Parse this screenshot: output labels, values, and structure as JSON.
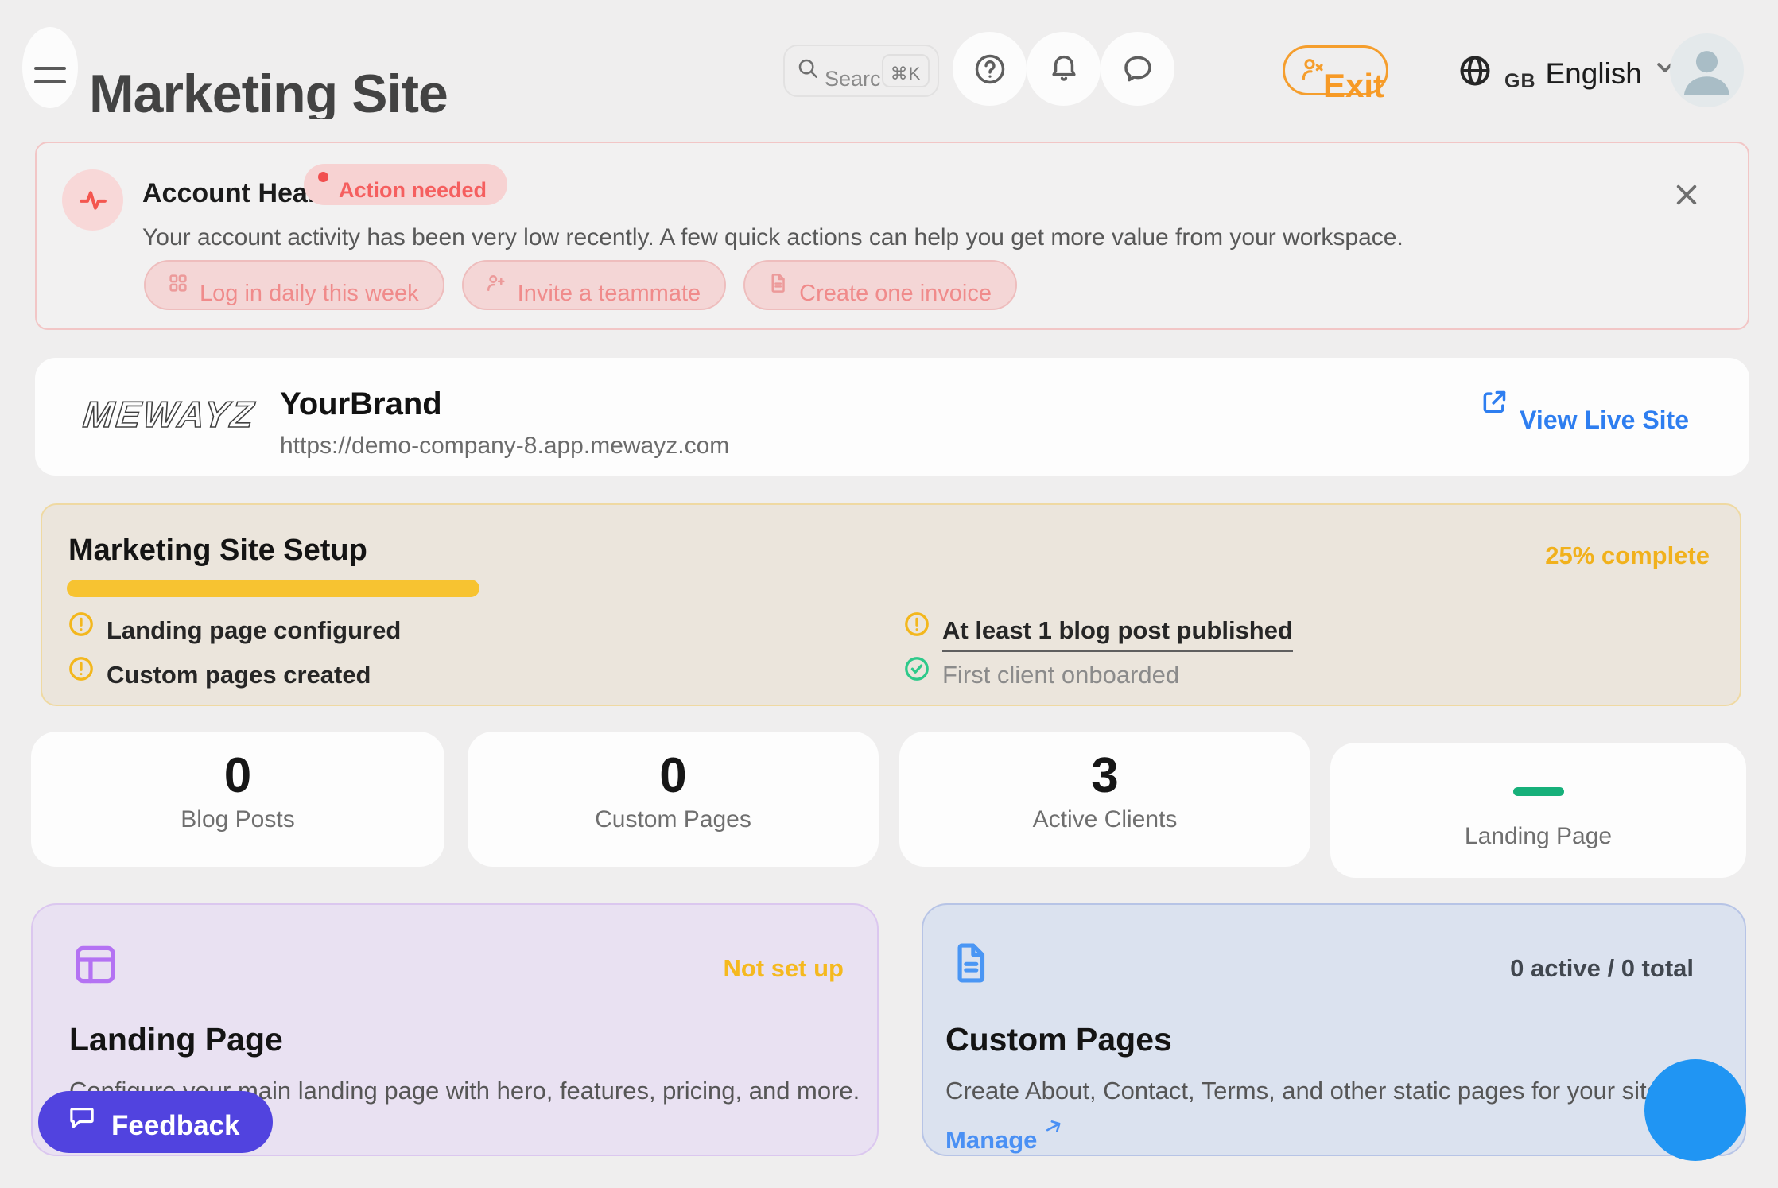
{
  "theme": {
    "page_background": "#efeeee",
    "accent_blue": "#2e7ef0",
    "accent_amber": "#f1b11c",
    "accent_pink": "#f55f5f",
    "accent_green": "#17b07a",
    "accent_purple": "#b472f3",
    "accent_indigo": "#5143df",
    "accent_orange": "#f59e2d",
    "fab_blue": "#2095f3"
  },
  "header": {
    "title": "Marketing Site",
    "search": {
      "placeholder": "Search",
      "shortcut": "⌘K"
    },
    "exit_label": "Exit",
    "language": {
      "code": "GB",
      "label": "English"
    }
  },
  "account_health": {
    "title": "Account Health",
    "badge": "Action needed",
    "description": "Your account activity has been very low recently. A few quick actions can help you get more value from your workspace.",
    "actions": [
      {
        "label": "Log in daily this week",
        "icon": "grid-icon"
      },
      {
        "label": "Invite a teammate",
        "icon": "person-plus-icon"
      },
      {
        "label": "Create one invoice",
        "icon": "invoice-icon"
      }
    ]
  },
  "brand": {
    "logo": "MEWAYZ",
    "name": "YourBrand",
    "url": "https://demo-company-8.app.mewayz.com",
    "live_link": "View Live Site"
  },
  "setup": {
    "title": "Marketing Site Setup",
    "progress_label": "25% complete",
    "progress_percent": 25,
    "items": [
      {
        "label": "Landing page configured",
        "status": "pending"
      },
      {
        "label": "Custom pages created",
        "status": "pending"
      },
      {
        "label": "At least 1 blog post published",
        "status": "pending",
        "underlined": true
      },
      {
        "label": "First client onboarded",
        "status": "done"
      }
    ]
  },
  "stats": [
    {
      "value": "0",
      "label": "Blog Posts"
    },
    {
      "value": "0",
      "label": "Custom Pages"
    },
    {
      "value": "3",
      "label": "Active Clients"
    },
    {
      "value": "",
      "label": "Landing Page",
      "dash": true
    }
  ],
  "feature_cards": [
    {
      "title": "Landing Page",
      "status": "Not set up",
      "description": "Configure your main landing page with hero, features, pricing, and more.",
      "icon": "layout-icon",
      "theme": "purple"
    },
    {
      "title": "Custom Pages",
      "status": "0 active / 0 total",
      "description": "Create About, Contact, Terms, and other static pages for your site.",
      "link": "Manage",
      "icon": "document-icon",
      "theme": "blue"
    }
  ],
  "feedback_label": "Feedback"
}
